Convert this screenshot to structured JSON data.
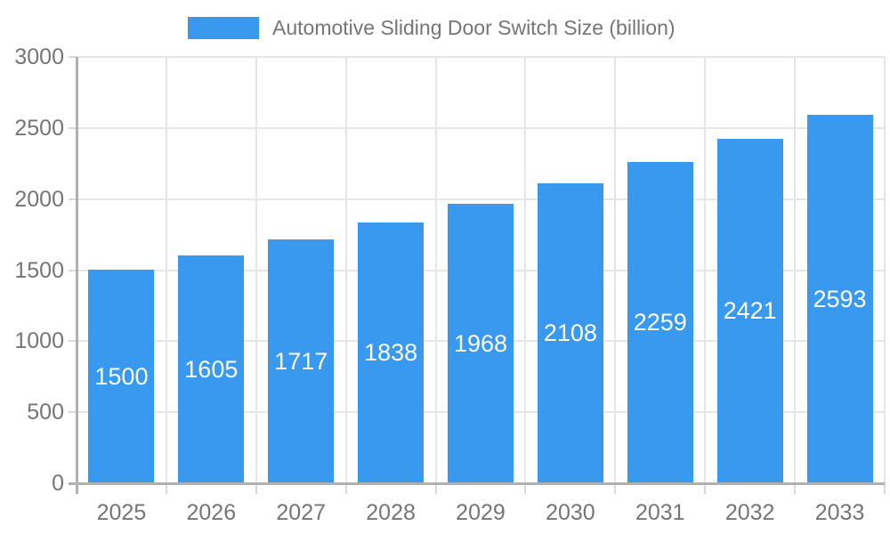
{
  "legend": {
    "label": "Automotive Sliding Door Switch Size (billion)"
  },
  "chart_data": {
    "type": "bar",
    "title": "Automotive Sliding Door Switch Size (billion)",
    "categories": [
      "2025",
      "2026",
      "2027",
      "2028",
      "2029",
      "2030",
      "2031",
      "2032",
      "2033"
    ],
    "series": [
      {
        "name": "Automotive Sliding Door Switch Size (billion)",
        "values": [
          1500,
          1605,
          1717,
          1838,
          1968,
          2108,
          2259,
          2421,
          2593
        ]
      }
    ],
    "xlabel": "",
    "ylabel": "",
    "ylim": [
      0,
      3000
    ],
    "yticks": [
      0,
      500,
      1000,
      1500,
      2000,
      2500,
      3000
    ],
    "grid": true,
    "legend_position": "top",
    "bar_value_labels": "inside-center",
    "colors": {
      "bar": "#3899ee",
      "grid": "#e6e6e6",
      "axis": "#b0b0b0",
      "tick": "#d9d9d9",
      "text": "#757575",
      "bar_label": "#ffffff",
      "background": "#ffffff"
    }
  }
}
